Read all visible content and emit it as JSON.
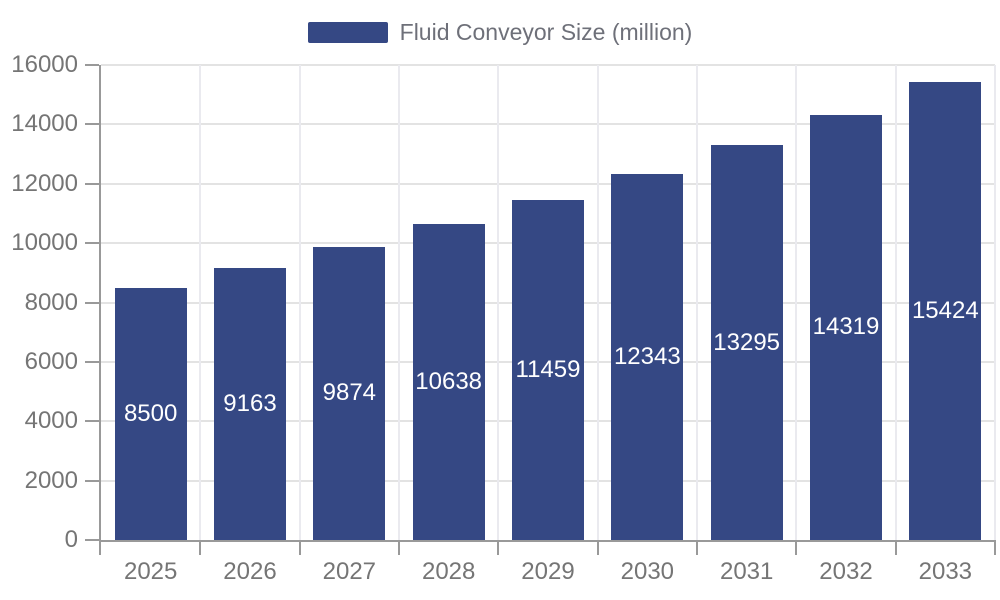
{
  "chart_data": {
    "type": "bar",
    "title": "Fluid Conveyor Size (million)",
    "legend": {
      "position": "top",
      "label": "Fluid Conveyor Size (million)"
    },
    "categories": [
      "2025",
      "2026",
      "2027",
      "2028",
      "2029",
      "2030",
      "2031",
      "2032",
      "2033"
    ],
    "values": [
      8500,
      9163,
      9874,
      10638,
      11459,
      12343,
      13295,
      14319,
      15424
    ],
    "xlabel": "",
    "ylabel": "",
    "ylim": [
      0,
      16000
    ],
    "ytick_step": 2000,
    "ytick_labels": [
      "0",
      "2000",
      "4000",
      "6000",
      "8000",
      "10000",
      "12000",
      "14000",
      "16000"
    ],
    "grid": true,
    "value_labels_shown": true,
    "colors": {
      "bar": "#354884",
      "value_label": "#FFFFFF",
      "axis_label": "#757575",
      "legend_text": "#6E7079",
      "gridline_horizontal": "#E3E3E3",
      "gridline_vertical": "#EAEAEF",
      "axis_line": "#999999",
      "background": "#FFFFFF"
    }
  }
}
